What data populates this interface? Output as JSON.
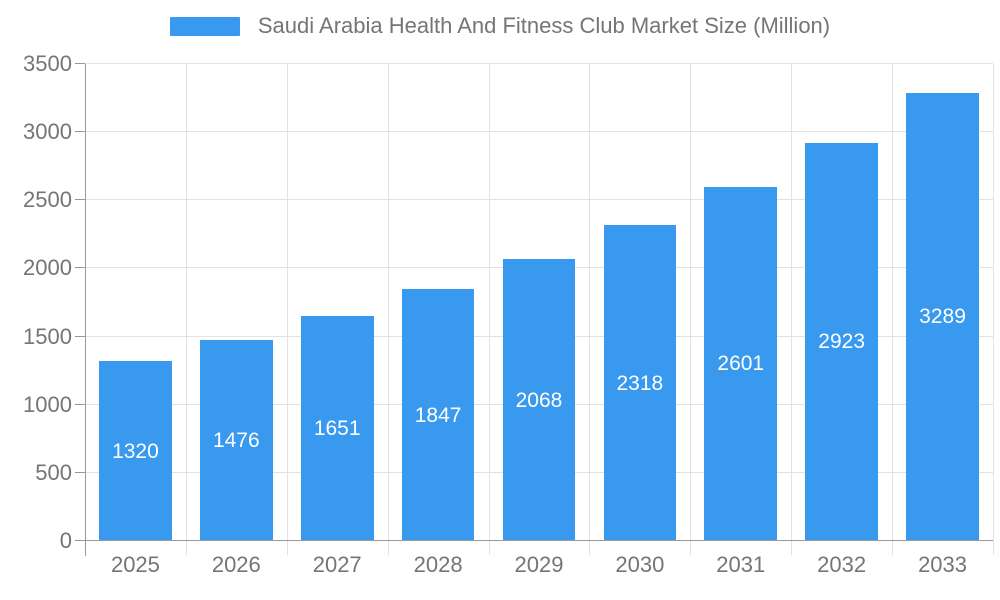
{
  "legend": {
    "label": "Saudi Arabia Health And Fitness Club Market Size (Million)"
  },
  "colors": {
    "bar": "#3899EE",
    "grid": "#e2e2e2",
    "axis": "#999999",
    "tick_label": "#757575",
    "value_label": "#ffffff",
    "background": "#ffffff"
  },
  "chart_data": {
    "type": "bar",
    "title": "Saudi Arabia Health And Fitness Club Market Size (Million)",
    "categories": [
      "2025",
      "2026",
      "2027",
      "2028",
      "2029",
      "2030",
      "2031",
      "2032",
      "2033"
    ],
    "series": [
      {
        "name": "Saudi Arabia Health And Fitness Club Market Size (Million)",
        "values": [
          1320,
          1476,
          1651,
          1847,
          2068,
          2318,
          2601,
          2923,
          3289
        ]
      }
    ],
    "xlabel": "",
    "ylabel": "",
    "ylim": [
      0,
      3500
    ],
    "yticks": [
      0,
      500,
      1000,
      1500,
      2000,
      2500,
      3000,
      3500
    ],
    "grid": true,
    "legend_position": "top",
    "value_labels": "centered-inside-bars"
  }
}
